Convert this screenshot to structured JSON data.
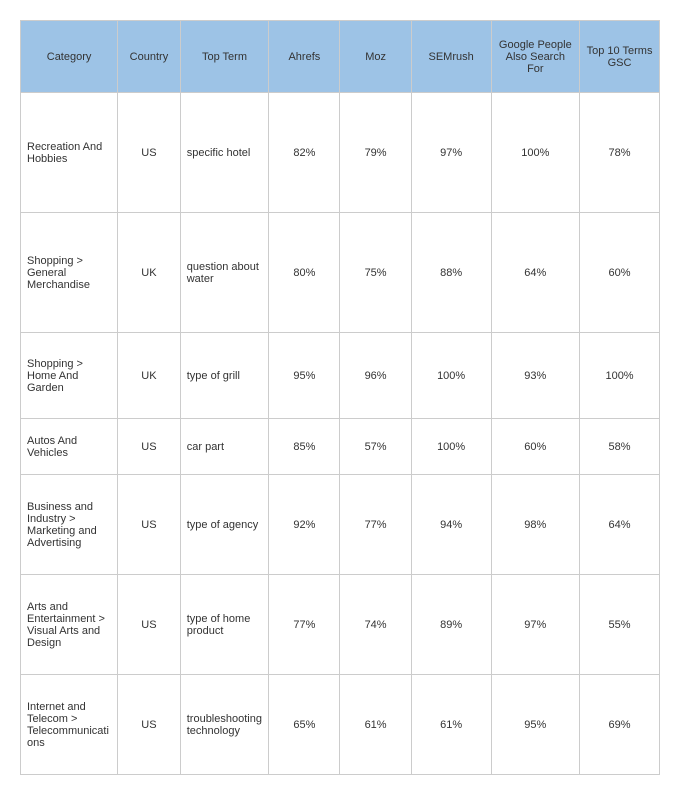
{
  "table": {
    "header_bg": "#9dc3e6",
    "border_color": "#cccccc",
    "text_color": "#333333",
    "font_size_header": 11,
    "font_size_cell": 11,
    "columns": [
      {
        "key": "category",
        "label": "Category",
        "width": 90,
        "align": "left"
      },
      {
        "key": "country",
        "label": "Country",
        "width": 58,
        "align": "center"
      },
      {
        "key": "topterm",
        "label": "Top Term",
        "width": 82,
        "align": "left"
      },
      {
        "key": "ahrefs",
        "label": "Ahrefs",
        "width": 66,
        "align": "center"
      },
      {
        "key": "moz",
        "label": "Moz",
        "width": 66,
        "align": "center"
      },
      {
        "key": "semrush",
        "label": "SEMrush",
        "width": 74,
        "align": "center"
      },
      {
        "key": "gpasf",
        "label": "Google People Also Search For",
        "width": 82,
        "align": "center"
      },
      {
        "key": "top10",
        "label": "Top 10 Terms GSC",
        "width": 74,
        "align": "center"
      }
    ],
    "rows": [
      {
        "category": " Recreation And Hobbies",
        "country": "US",
        "topterm": "specific hotel",
        "ahrefs": "82%",
        "moz": "79%",
        "semrush": "97%",
        "gpasf": "100%",
        "top10": "78%"
      },
      {
        "category": "Shopping > General Merchandise",
        "country": "UK",
        "topterm": "question about water",
        "ahrefs": "80%",
        "moz": "75%",
        "semrush": "88%",
        "gpasf": "64%",
        "top10": "60%"
      },
      {
        "category": "Shopping > Home And Garden",
        "country": "UK",
        "topterm": "type of grill",
        "ahrefs": "95%",
        "moz": "96%",
        "semrush": "100%",
        "gpasf": "93%",
        "top10": "100%"
      },
      {
        "category": "Autos And Vehicles",
        "country": "US",
        "topterm": "car part",
        "ahrefs": "85%",
        "moz": "57%",
        "semrush": "100%",
        "gpasf": "60%",
        "top10": "58%"
      },
      {
        "category": "Business and Industry > Marketing and Advertising",
        "country": "US",
        "topterm": "type of agency",
        "ahrefs": "92%",
        "moz": "77%",
        "semrush": "94%",
        "gpasf": "98%",
        "top10": "64%"
      },
      {
        "category": " Arts and Entertainment > Visual Arts and Design",
        "country": "US",
        "topterm": "type of home product",
        "ahrefs": "77%",
        "moz": "74%",
        "semrush": "89%",
        "gpasf": "97%",
        "top10": "55%"
      },
      {
        "category": "Internet  and Telecom > Telecommunications",
        "country": "US",
        "topterm": "troubleshooting technology",
        "ahrefs": "65%",
        "moz": "61%",
        "semrush": "61%",
        "gpasf": "95%",
        "top10": "69%"
      }
    ]
  }
}
